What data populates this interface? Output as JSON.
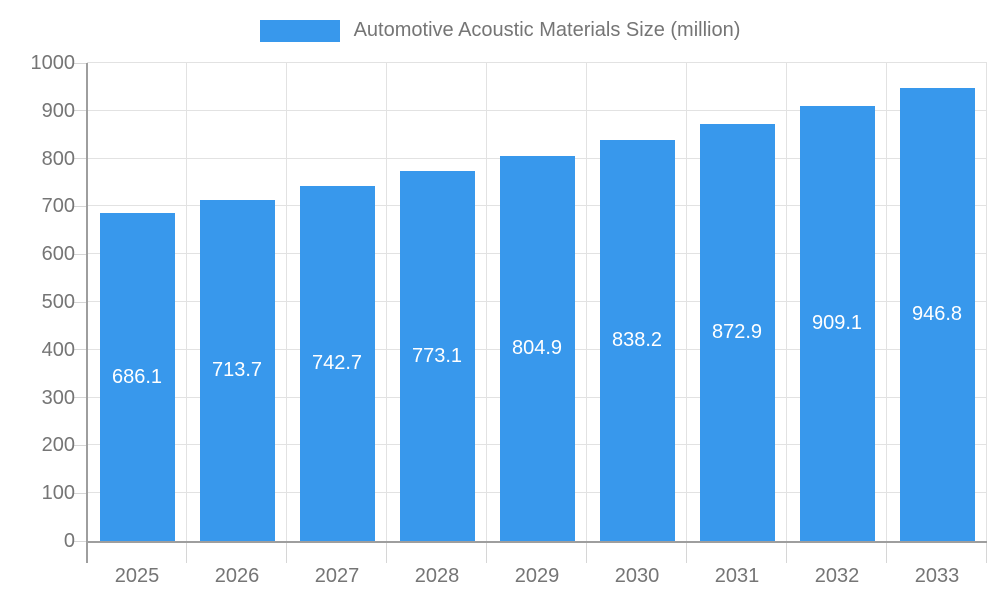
{
  "legend": {
    "label": "Automotive Acoustic Materials Size (million)"
  },
  "colors": {
    "bar": "#3898EC",
    "grid_line": "#E2E2E2",
    "axis_line": "#9E9E9E",
    "tick_line": "#D6D6D6",
    "axis_text": "#757575",
    "legend_text": "#757575",
    "value_label_text": "#FFFFFF",
    "background": "#FFFFFF"
  },
  "chart_data": {
    "type": "bar",
    "title": "Automotive Acoustic Materials Size (million)",
    "categories": [
      "2025",
      "2026",
      "2027",
      "2028",
      "2029",
      "2030",
      "2031",
      "2032",
      "2033"
    ],
    "series": [
      {
        "name": "Automotive Acoustic Materials Size (million)",
        "values": [
          686.1,
          713.7,
          742.7,
          773.1,
          804.9,
          838.2,
          872.9,
          909.1,
          946.8
        ]
      }
    ],
    "xlabel": "",
    "ylabel": "",
    "ylim": [
      0,
      1000
    ],
    "ytick_step": 100,
    "grid": true,
    "legend_position": "top-center",
    "value_labels": "inside-center"
  }
}
